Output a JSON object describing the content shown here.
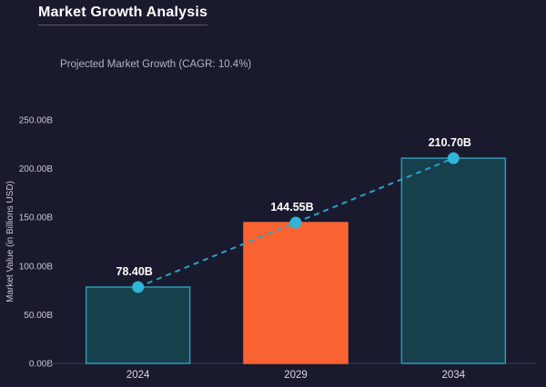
{
  "header": {
    "title": "Market Growth Analysis",
    "subtitle": "Projected Market Growth (CAGR: 10.4%)"
  },
  "chart_data": {
    "type": "bar",
    "title": "Market Growth Analysis",
    "subtitle": "Projected Market Growth (CAGR: 10.4%)",
    "categories": [
      "2024",
      "2029",
      "2034"
    ],
    "values": [
      78.4,
      144.55,
      210.7
    ],
    "value_labels": [
      "78.40B",
      "144.55B",
      "210.70B"
    ],
    "xlabel": "",
    "ylabel": "Market Value (in Billions USD)",
    "ylim": [
      0,
      250
    ],
    "ytick_values": [
      0,
      50,
      100,
      150,
      200,
      250
    ],
    "ytick_labels": [
      "0.00B",
      "50.00B",
      "100.00B",
      "150.00B",
      "200.00B",
      "250.00B"
    ],
    "grid": false,
    "legend": false,
    "overlay": "dashed trend line with circular markers through bar tops",
    "bar_fill_colors": [
      "#17404d",
      "#f96332",
      "#17404d"
    ],
    "bar_border_colors": [
      "#2e98b6",
      "#f96332",
      "#2e98b6"
    ],
    "line_color": "#2aa3c6",
    "marker_color": "#2eb5d8",
    "background_color": "#1a1a2e",
    "value_label_color": "#ffffff",
    "axis_text_color": "#c6c6d6"
  }
}
